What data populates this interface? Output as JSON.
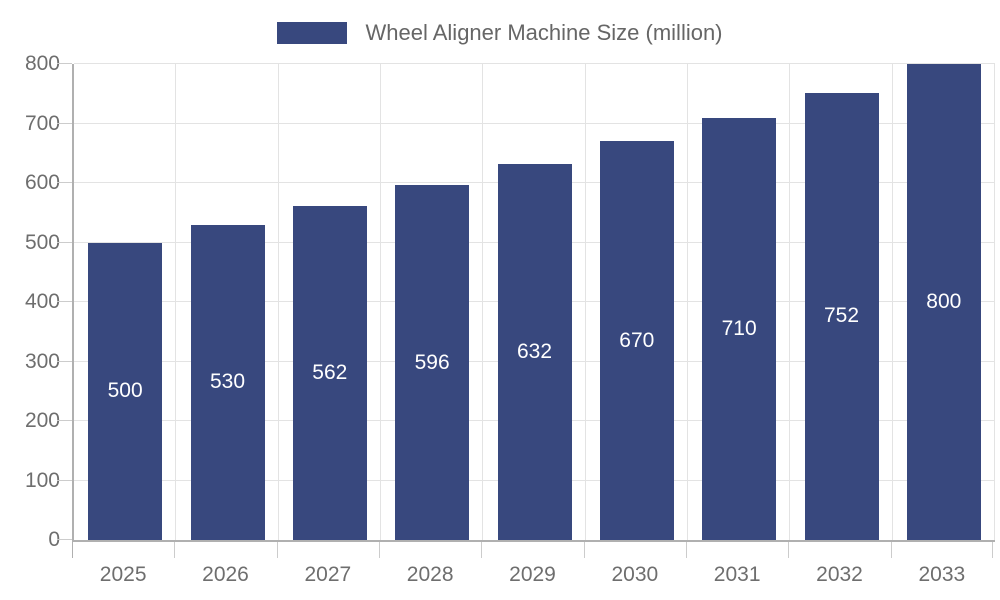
{
  "legend": {
    "label": "Wheel Aligner Machine Size (million)"
  },
  "chart_data": {
    "type": "bar",
    "title": "Wheel Aligner Machine Size (million)",
    "categories": [
      "2025",
      "2026",
      "2027",
      "2028",
      "2029",
      "2030",
      "2031",
      "2032",
      "2033"
    ],
    "values": [
      500,
      530,
      562,
      596,
      632,
      670,
      710,
      752,
      800
    ],
    "series": [
      {
        "name": "Wheel Aligner Machine Size (million)",
        "values": [
          500,
          530,
          562,
          596,
          632,
          670,
          710,
          752,
          800
        ]
      }
    ],
    "xlabel": "",
    "ylabel": "",
    "ylim": [
      0,
      800
    ],
    "ytick_step": 100,
    "yticks": [
      0,
      100,
      200,
      300,
      400,
      500,
      600,
      700,
      800
    ],
    "grid": true,
    "legend_position": "top-center",
    "value_labels": "inside-center",
    "colors": {
      "bar": "#38487E",
      "value_label": "#ffffff",
      "axis_label": "#6e6e6e",
      "legend_text": "#666666",
      "gridline": "#e3e3e3",
      "axis_line": "#b0b0b0",
      "tick": "#cccccc",
      "background": "#ffffff"
    }
  }
}
